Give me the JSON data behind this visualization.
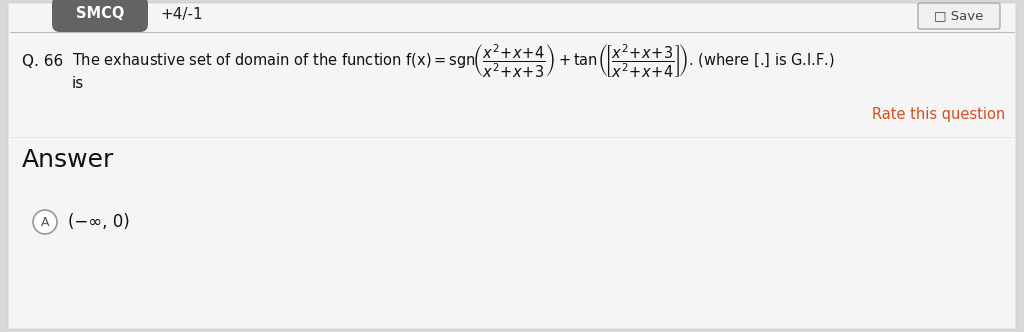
{
  "bg_color": "#d8d8d8",
  "card_facecolor": "#f5f5f5",
  "smcq_bg": "#636363",
  "smcq_text": "SMCQ",
  "smcq_color": "#ffffff",
  "marks_text": "+4/-1",
  "marks_color": "#222222",
  "save_icon": "☐",
  "save_text": "Save",
  "question_number": "Q. 66",
  "is_text": "is",
  "rate_text": "Rate this question",
  "rate_color": "#d05020",
  "answer_text": "Answer",
  "option_letter": "A",
  "option_text": "(−∞, 0)",
  "sep_line_color": "#bbbbbb"
}
